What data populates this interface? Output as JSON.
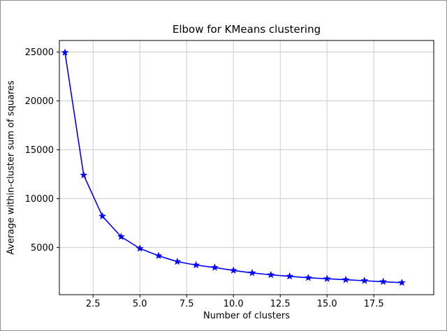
{
  "window": {
    "background": "#ffffff",
    "border_color": "#909090"
  },
  "chart_data": {
    "type": "line",
    "title": "Elbow for KMeans clustering",
    "xlabel": "Number of clusters",
    "ylabel": "Average within-cluster sum of squares",
    "x": [
      1,
      2,
      3,
      4,
      5,
      6,
      7,
      8,
      9,
      10,
      11,
      12,
      13,
      14,
      15,
      16,
      17,
      18,
      19
    ],
    "y": [
      24950,
      12400,
      8200,
      6100,
      4900,
      4150,
      3550,
      3200,
      2950,
      2650,
      2400,
      2200,
      2050,
      1900,
      1800,
      1700,
      1600,
      1500,
      1400
    ],
    "xlim": [
      0.7,
      20.7
    ],
    "ylim": [
      168,
      26182
    ],
    "xticks": [
      2.5,
      5,
      7.5,
      10,
      12.5,
      15,
      17.5
    ],
    "xtick_labels": [
      "2.5",
      "5.0",
      "7.5",
      "10.0",
      "12.5",
      "15.0",
      "17.5"
    ],
    "yticks": [
      5000,
      10000,
      15000,
      20000,
      25000
    ],
    "ytick_labels": [
      "5000",
      "10000",
      "15000",
      "20000",
      "25000"
    ],
    "grid": true,
    "grid_color": "#cccccc",
    "line_color": "#0000ff",
    "marker": "star",
    "marker_color": "#0000ff",
    "axis_color": "#000000",
    "legend": "none"
  }
}
